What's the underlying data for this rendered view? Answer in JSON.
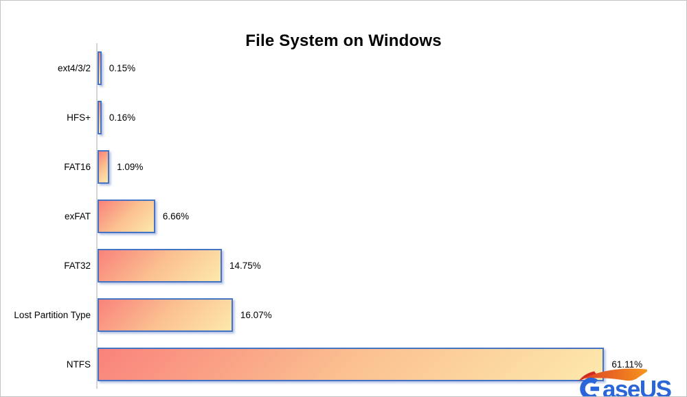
{
  "chart_data": {
    "type": "bar",
    "orientation": "horizontal",
    "title": "File System on Windows",
    "categories": [
      "ext4/3/2",
      "HFS+",
      "FAT16",
      "exFAT",
      "FAT32",
      "Lost Partition Type",
      "NTFS"
    ],
    "values": [
      0.15,
      0.16,
      1.09,
      6.66,
      14.75,
      16.07,
      61.11
    ],
    "value_labels": [
      "0.15%",
      "0.16%",
      "1.09%",
      "6.66%",
      "14.75%",
      "16.07%",
      "61.11%"
    ],
    "xlim": [
      0,
      71
    ],
    "grid": false,
    "legend": false,
    "colors": {
      "bar_gradient_start": "#F9827B",
      "bar_gradient_mid": "#FBC090",
      "bar_gradient_end": "#FDE9AC",
      "bar_border": "#4472C4",
      "axis_line": "#D4D4D4",
      "title_text": "#000000",
      "label_text": "#000000"
    }
  },
  "watermark": {
    "brand": "EaseUS",
    "logo_text": "aseUS",
    "logo_blue": "#2A66D9",
    "swoosh_red": "#D3281F",
    "swoosh_orange": "#F7941E"
  }
}
